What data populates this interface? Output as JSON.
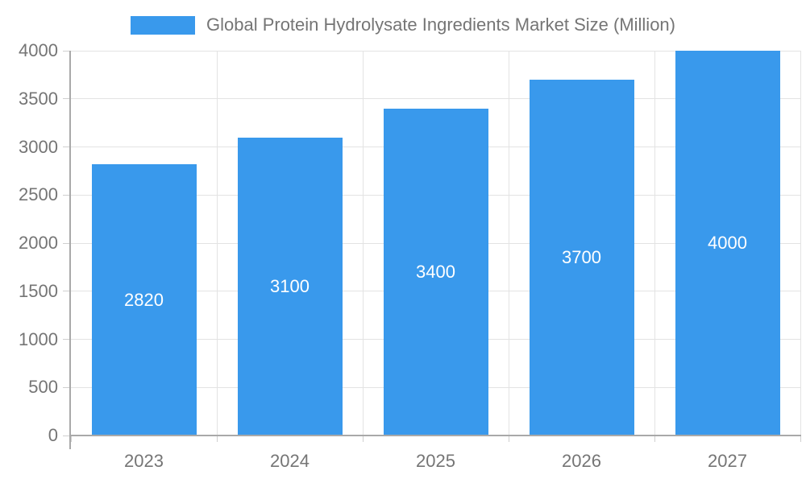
{
  "chart_data": {
    "type": "bar",
    "title": "Global Protein Hydrolysate Ingredients Market Size (Million)",
    "categories": [
      "2023",
      "2024",
      "2025",
      "2026",
      "2027"
    ],
    "values": [
      2820,
      3100,
      3400,
      3700,
      4000
    ],
    "value_labels": [
      "2820",
      "3100",
      "3400",
      "3700",
      "4000"
    ],
    "xlabel": "",
    "ylabel": "",
    "ylim": [
      0,
      4000
    ],
    "yticks": [
      0,
      500,
      1000,
      1500,
      2000,
      2500,
      3000,
      3500,
      4000
    ],
    "grid": true,
    "legend_position": "top",
    "colors": {
      "bar": "#3999EC",
      "bar_value_text": "#FFFFFF",
      "axis_text": "#757575",
      "gridline": "#E3E3E3",
      "axis_line": "#A9A9A9",
      "background": "#FFFFFF"
    }
  },
  "legend": {
    "label": "Global Protein Hydrolysate Ingredients Market Size (Million)"
  }
}
